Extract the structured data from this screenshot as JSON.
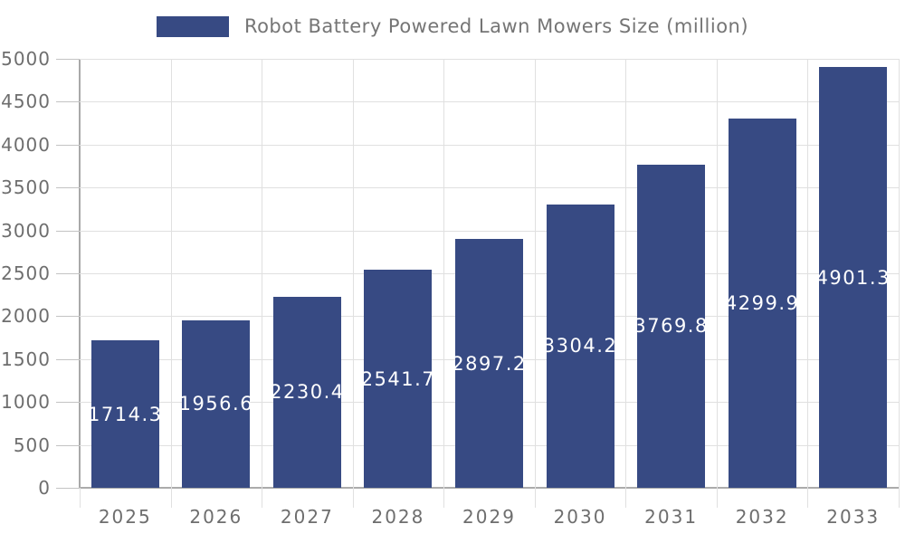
{
  "legend": {
    "label": "Robot Battery Powered Lawn Mowers Size (million)"
  },
  "chart_data": {
    "type": "bar",
    "title": "Robot Battery Powered Lawn Mowers Size (million)",
    "series_name": "Robot Battery Powered Lawn Mowers Size (million)",
    "categories": [
      "2025",
      "2026",
      "2027",
      "2028",
      "2029",
      "2030",
      "2031",
      "2032",
      "2033"
    ],
    "values": [
      1714.3,
      1956.6,
      2230.4,
      2541.7,
      2897.2,
      3304.2,
      3769.8,
      4299.9,
      4901.3
    ],
    "value_labels": [
      "1714.3",
      "1956.6",
      "2230.4",
      "2541.7",
      "2897.2",
      "3304.2",
      "3769.8",
      "4299.9",
      "4901.3"
    ],
    "xlabel": "",
    "ylabel": "",
    "ylim": [
      0,
      5000
    ],
    "y_ticks": [
      "0",
      "500",
      "1000",
      "1500",
      "2000",
      "2500",
      "3000",
      "3500",
      "4000",
      "4500",
      "5000"
    ],
    "grid": true,
    "legend_position": "top",
    "value_label_position": "inside-middle",
    "colors": {
      "bar": "#374A83",
      "value_label": "#FFFFFF",
      "grid_line": "#E0E0E0",
      "axis_line": "#ABABAB",
      "tick_label": "#6E6E6E",
      "legend_text": "#757575"
    }
  }
}
